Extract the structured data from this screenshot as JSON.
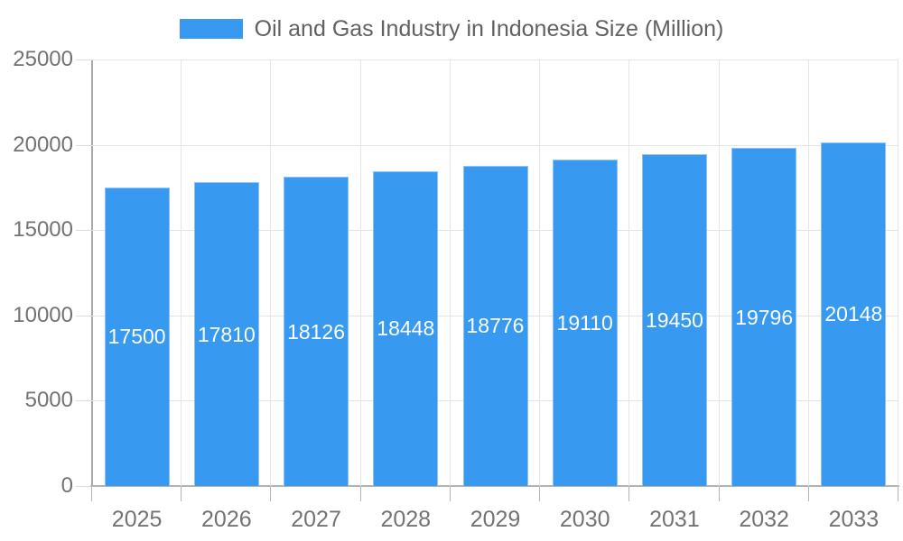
{
  "chart_data": {
    "type": "bar",
    "title": "Oil and Gas Industry in Indonesia Size (Million)",
    "legend_label": "Oil and Gas Industry in Indonesia Size (Million)",
    "legend_position": "top",
    "categories": [
      "2025",
      "2026",
      "2027",
      "2028",
      "2029",
      "2030",
      "2031",
      "2032",
      "2033"
    ],
    "values": [
      17500,
      17810,
      18126,
      18448,
      18776,
      19110,
      19450,
      19796,
      20148
    ],
    "value_labels": [
      "17500",
      "17810",
      "18126",
      "18448",
      "18776",
      "19110",
      "19450",
      "19796",
      "20148"
    ],
    "xlabel": "",
    "ylabel": "",
    "ylim": [
      0,
      25000
    ],
    "yticks": [
      0,
      5000,
      10000,
      15000,
      20000,
      25000
    ],
    "grid": true,
    "colors": {
      "bar": "#3799F0",
      "bar_border": "#8cc2f4",
      "bar_value_label": "#ffffff",
      "gridline": "#e4e4e4",
      "axis_line": "#a8a8a8",
      "baseline": "#b2b2b2",
      "tick": "#b5b5b5",
      "axis_label_text": "#737373",
      "legend_text": "#616161"
    }
  }
}
